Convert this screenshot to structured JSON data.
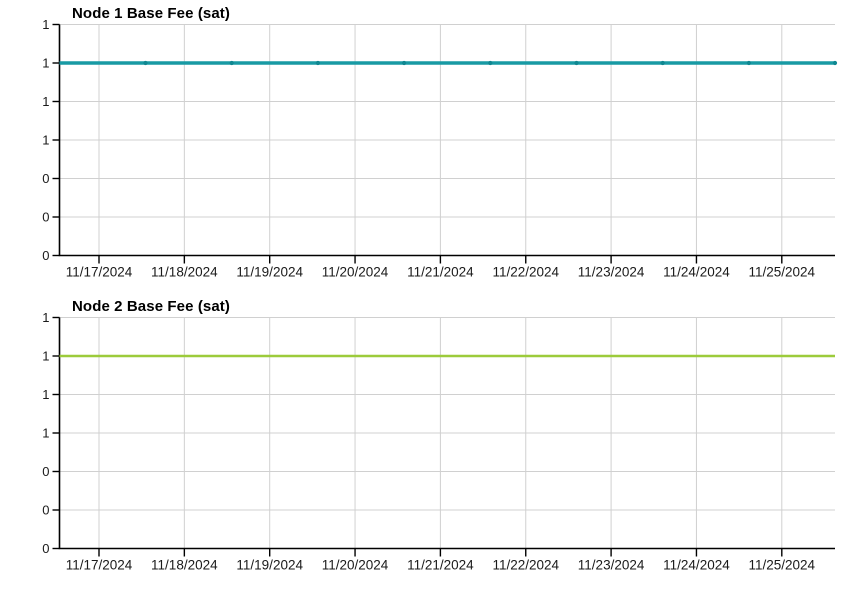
{
  "charts_meta": {
    "background": "#ffffff",
    "grid_color": "#d0d0d0",
    "axis_color": "#000000",
    "label_color": "#1a1a1a"
  },
  "chart_data": [
    {
      "type": "line",
      "title": "Node 1 Base Fee (sat)",
      "x": [
        "11/17/2024",
        "11/18/2024",
        "11/19/2024",
        "11/20/2024",
        "11/21/2024",
        "11/22/2024",
        "11/23/2024",
        "11/24/2024",
        "11/25/2024"
      ],
      "series": [
        {
          "name": "Node 1 Base Fee (sat)",
          "values": [
            1,
            1,
            1,
            1,
            1,
            1,
            1,
            1,
            1
          ]
        }
      ],
      "xlabel": "",
      "ylabel": "",
      "ylim": [
        0,
        1.2
      ],
      "y_ticks": [
        1.2,
        1.0,
        0.8,
        0.6,
        0.4,
        0.2,
        0
      ],
      "y_tick_labels": [
        "1",
        "1",
        "1",
        "1",
        "0",
        "0",
        "0"
      ],
      "grid": true,
      "legend": "none",
      "line_color": "#189aa4",
      "marker_color": "#0f8791",
      "show_markers": true
    },
    {
      "type": "line",
      "title": "Node 2 Base Fee (sat)",
      "x": [
        "11/17/2024",
        "11/18/2024",
        "11/19/2024",
        "11/20/2024",
        "11/21/2024",
        "11/22/2024",
        "11/23/2024",
        "11/24/2024",
        "11/25/2024"
      ],
      "series": [
        {
          "name": "Node 2 Base Fee (sat)",
          "values": [
            1,
            1,
            1,
            1,
            1,
            1,
            1,
            1,
            1
          ]
        }
      ],
      "xlabel": "",
      "ylabel": "",
      "ylim": [
        0,
        1.2
      ],
      "y_ticks": [
        1.2,
        1.0,
        0.8,
        0.6,
        0.4,
        0.2,
        0
      ],
      "y_tick_labels": [
        "1",
        "1",
        "1",
        "1",
        "0",
        "0",
        "0"
      ],
      "grid": true,
      "legend": "none",
      "line_color": "#9ccb3b",
      "marker_color": "#9ccb3b",
      "show_markers": false
    }
  ]
}
